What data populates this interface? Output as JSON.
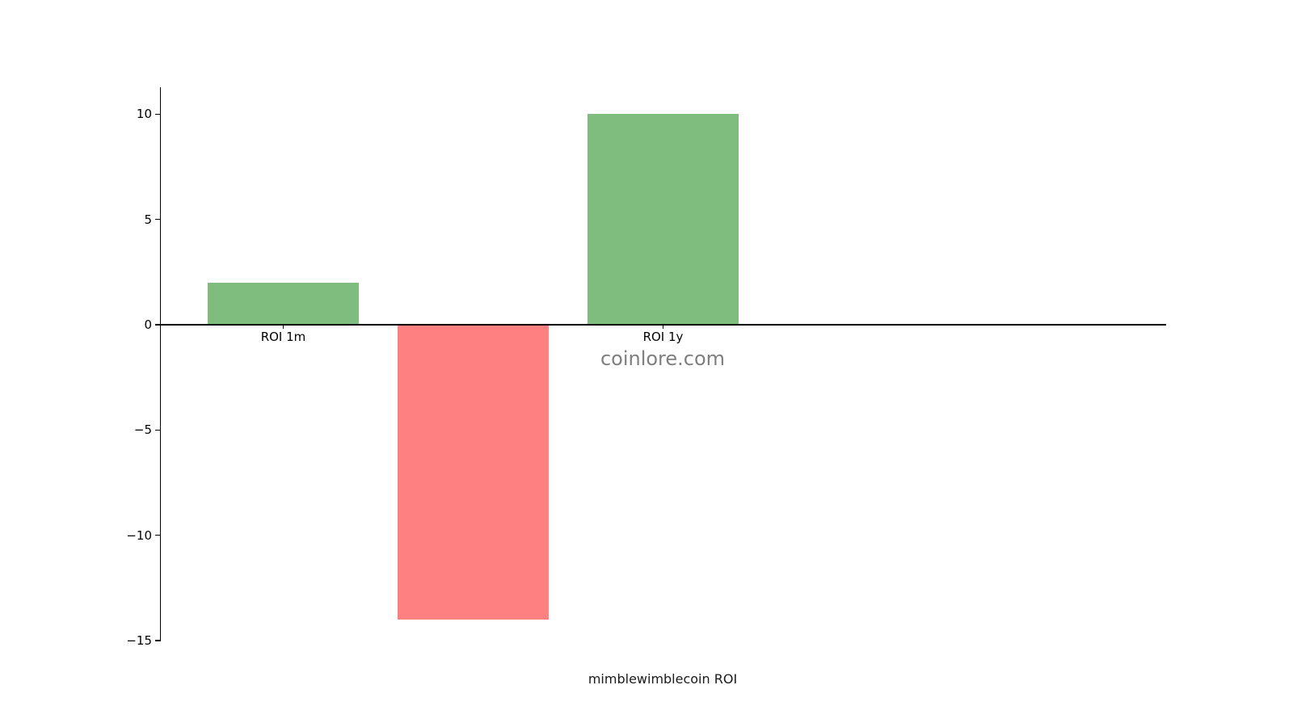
{
  "watermark": {
    "text": "coinlore.com",
    "color": "#7f7f7f"
  },
  "chart_data": {
    "type": "bar",
    "title": "",
    "xlabel": "mimblewimblecoin ROI",
    "ylabel": "",
    "categories": [
      "ROI 1m",
      "",
      "ROI 1y"
    ],
    "values": [
      2,
      -14,
      10
    ],
    "yticks": [
      10,
      5,
      0,
      -5,
      -10,
      -15
    ],
    "ytick_labels": [
      "10",
      "5",
      "0",
      "−5",
      "−10",
      "−15"
    ],
    "ylim": [
      -15,
      11.3
    ],
    "grid": false,
    "legend": "none",
    "colors": {
      "positive": "#7ebd7e",
      "negative": "#ff8080"
    }
  }
}
